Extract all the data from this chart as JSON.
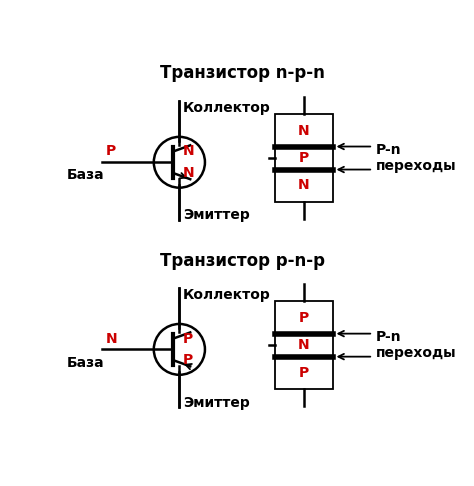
{
  "bg_color": "#ffffff",
  "title_npn": "Транзистор n-p-n",
  "title_pnp": "Транзистор p-n-p",
  "label_collector": "Коллектор",
  "label_base": "База",
  "label_emitter": "Эмиттер",
  "label_pn": "P-n\nпереходы",
  "label_n_red": "N",
  "label_p_red": "P",
  "black": "#000000",
  "red": "#cc0000",
  "font_size_title": 12,
  "font_size_label": 10,
  "font_size_region": 10
}
